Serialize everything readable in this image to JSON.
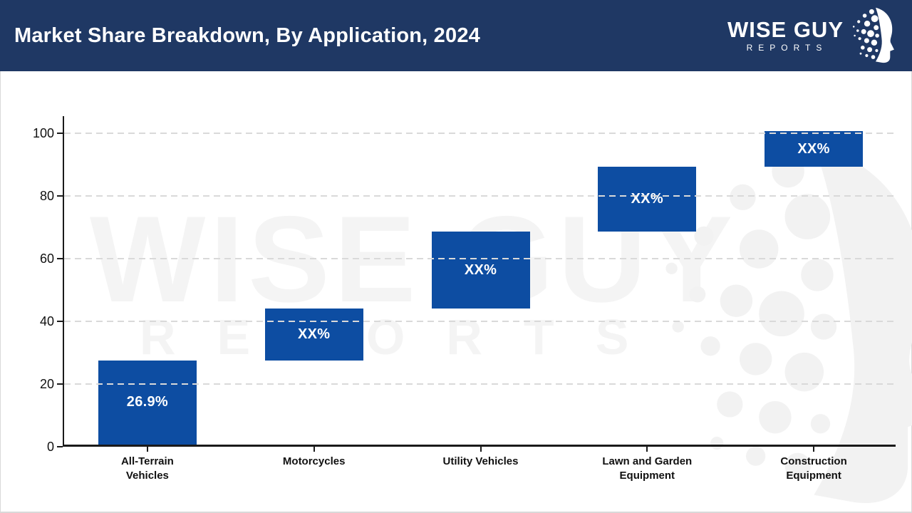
{
  "header": {
    "title": "Market Share Breakdown, By Application, 2024",
    "logo": {
      "line1": "WISE GUY",
      "line2": "REPORTS",
      "icon": "dotted-head-profile-icon"
    }
  },
  "watermark": {
    "line1": "WISE GUY",
    "line2": "REPORTS",
    "icon": "dotted-head-profile-icon"
  },
  "colors": {
    "header_bg": "#1f3864",
    "bar": "#0d4da2",
    "gridline": "#d9d9d9",
    "axis": "#1a1a1a",
    "watermark_text": "#f4f4f4",
    "bar_label": "#ffffff"
  },
  "chart_data": {
    "type": "bar",
    "subtype": "waterfall-floating-bars",
    "title": "Market Share Breakdown, By Application, 2024",
    "xlabel": "",
    "ylabel": "",
    "ylim": [
      0,
      100
    ],
    "yticks": [
      0,
      20,
      40,
      60,
      80,
      100
    ],
    "grid": "horizontal-dashed",
    "legend": "none",
    "bars": [
      {
        "category": "All-Terrain Vehicles",
        "category_lines": [
          "All-Terrain",
          "Vehicles"
        ],
        "start": 0,
        "end": 26.9,
        "label": "26.9%"
      },
      {
        "category": "Motorcycles",
        "category_lines": [
          "Motorcycles"
        ],
        "start": 26.9,
        "end": 43.3,
        "label": "XX%"
      },
      {
        "category": "Utility Vehicles",
        "category_lines": [
          "Utility Vehicles"
        ],
        "start": 43.3,
        "end": 68.0,
        "label": "XX%"
      },
      {
        "category": "Lawn and Garden Equipment",
        "category_lines": [
          "Lawn and Garden",
          "Equipment"
        ],
        "start": 68.0,
        "end": 88.6,
        "label": "XX%"
      },
      {
        "category": "Construction Equipment",
        "category_lines": [
          "Construction",
          "Equipment"
        ],
        "start": 88.6,
        "end": 100.0,
        "label": "XX%"
      }
    ]
  }
}
